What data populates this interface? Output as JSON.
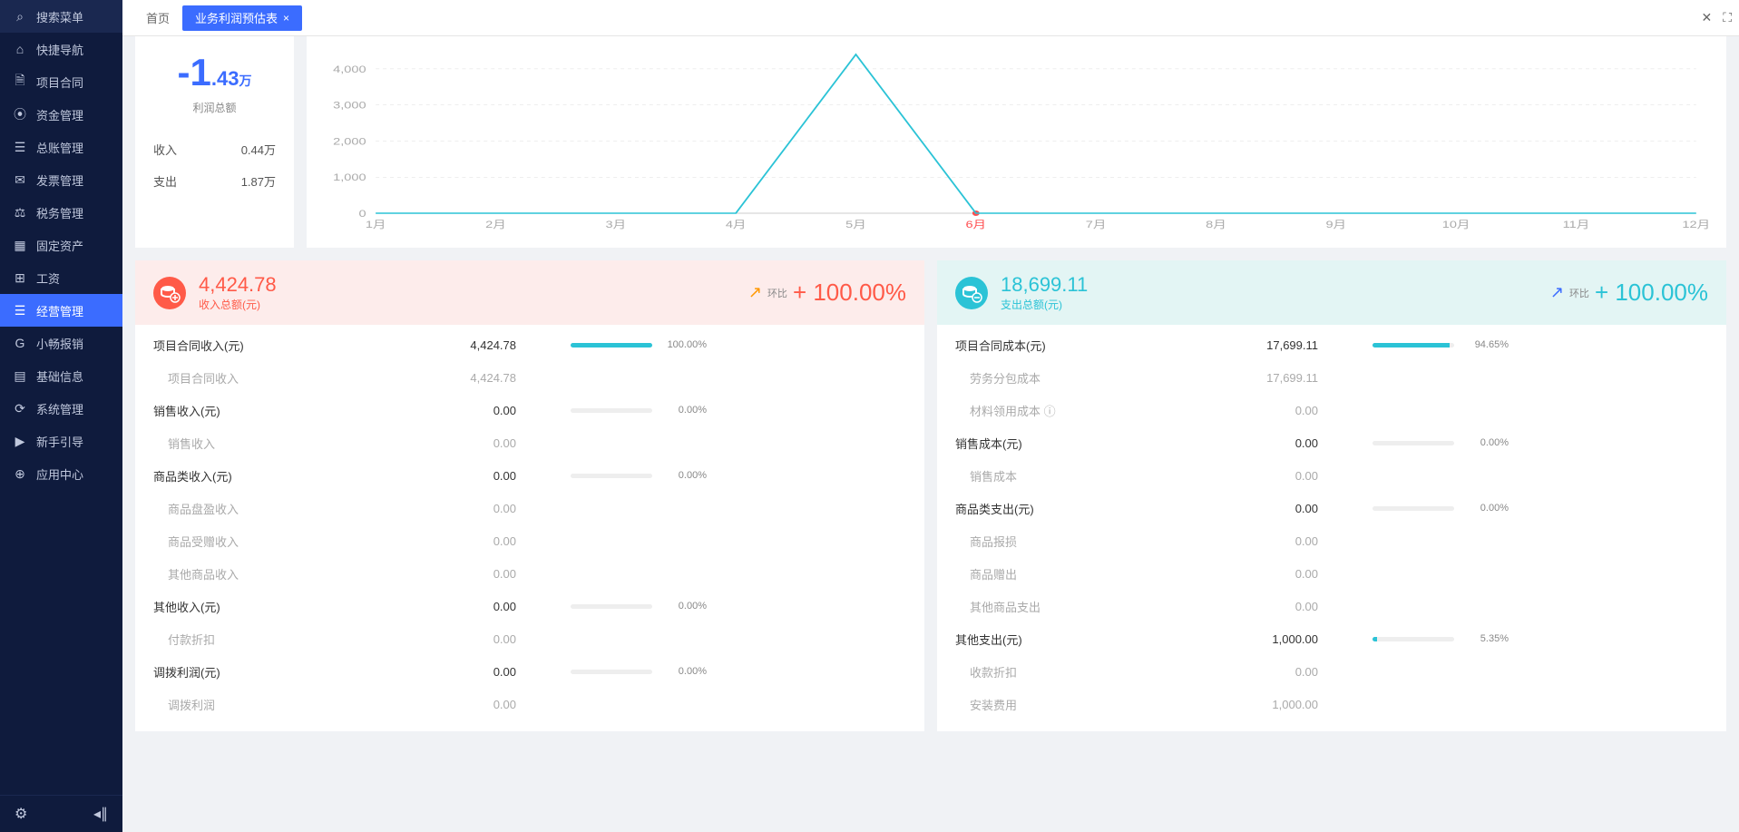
{
  "sidebar": {
    "items": [
      {
        "key": "search",
        "label": "搜索菜单",
        "icon": "⌕"
      },
      {
        "key": "quicknav",
        "label": "快捷导航",
        "icon": "⌂"
      },
      {
        "key": "contract",
        "label": "项目合同",
        "icon": "🗎"
      },
      {
        "key": "funds",
        "label": "资金管理",
        "icon": "⦿"
      },
      {
        "key": "ledger",
        "label": "总账管理",
        "icon": "☰"
      },
      {
        "key": "invoice",
        "label": "发票管理",
        "icon": "✉"
      },
      {
        "key": "tax",
        "label": "税务管理",
        "icon": "⚖"
      },
      {
        "key": "assets",
        "label": "固定资产",
        "icon": "▦"
      },
      {
        "key": "salary",
        "label": "工资",
        "icon": "⊞"
      },
      {
        "key": "biz",
        "label": "经营管理",
        "icon": "☰",
        "active": true
      },
      {
        "key": "xc",
        "label": "小畅报销",
        "icon": "G"
      },
      {
        "key": "basic",
        "label": "基础信息",
        "icon": "▤"
      },
      {
        "key": "sys",
        "label": "系统管理",
        "icon": "⟳"
      },
      {
        "key": "guide",
        "label": "新手引导",
        "icon": "▶"
      },
      {
        "key": "apps",
        "label": "应用中心",
        "icon": "⊕"
      }
    ],
    "footer": {
      "settings_icon": "⚙",
      "collapse_icon": "◂∥"
    }
  },
  "tabs": {
    "items": [
      {
        "label": "首页",
        "active": false,
        "closable": false
      },
      {
        "label": "业务利润预估表",
        "active": true,
        "closable": true
      }
    ],
    "close_icon": "✕",
    "fullscreen_icon": "⛶"
  },
  "summary": {
    "profit_int": "-1",
    "profit_dec": ".43",
    "profit_unit": "万",
    "profit_label": "利润总额",
    "income_label": "收入",
    "income_value": "0.44万",
    "expense_label": "支出",
    "expense_value": "1.87万"
  },
  "chart": {
    "type": "line",
    "x_labels": [
      "1月",
      "2月",
      "3月",
      "4月",
      "5月",
      "6月",
      "7月",
      "8月",
      "9月",
      "10月",
      "11月",
      "12月"
    ],
    "y_ticks": [
      0,
      1000,
      2000,
      3000,
      4000
    ],
    "values": [
      0,
      0,
      0,
      0,
      4400,
      0,
      0,
      0,
      0,
      0,
      0,
      0
    ],
    "ymax": 4400,
    "highlight_index": 5,
    "line_color": "#2bc3d6",
    "grid_color": "#dddddd",
    "axis_color": "#aaaaaa"
  },
  "income_card": {
    "total": "4,424.78",
    "total_label": "收入总额(元)",
    "hb_label": "环比",
    "pct": "+ 100.00%",
    "rows": [
      {
        "label": "项目合同收入(元)",
        "value": "4,424.78",
        "pct": "100.00%",
        "bar": 100,
        "main": true
      },
      {
        "label": "项目合同收入",
        "value": "4,424.78",
        "main": false
      },
      {
        "label": "销售收入(元)",
        "value": "0.00",
        "pct": "0.00%",
        "bar": 0,
        "main": true
      },
      {
        "label": "销售收入",
        "value": "0.00",
        "main": false
      },
      {
        "label": "商品类收入(元)",
        "value": "0.00",
        "pct": "0.00%",
        "bar": 0,
        "main": true
      },
      {
        "label": "商品盘盈收入",
        "value": "0.00",
        "main": false
      },
      {
        "label": "商品受赠收入",
        "value": "0.00",
        "main": false
      },
      {
        "label": "其他商品收入",
        "value": "0.00",
        "main": false
      },
      {
        "label": "其他收入(元)",
        "value": "0.00",
        "pct": "0.00%",
        "bar": 0,
        "main": true
      },
      {
        "label": "付款折扣",
        "value": "0.00",
        "main": false
      },
      {
        "label": "调拨利润(元)",
        "value": "0.00",
        "pct": "0.00%",
        "bar": 0,
        "main": true
      },
      {
        "label": "调拨利润",
        "value": "0.00",
        "main": false
      }
    ]
  },
  "expense_card": {
    "total": "18,699.11",
    "total_label": "支出总额(元)",
    "hb_label": "环比",
    "pct": "+ 100.00%",
    "rows": [
      {
        "label": "项目合同成本(元)",
        "value": "17,699.11",
        "pct": "94.65%",
        "bar": 94.65,
        "main": true
      },
      {
        "label": "劳务分包成本",
        "value": "17,699.11",
        "main": false
      },
      {
        "label": "材料领用成本 ⓘ",
        "value": "0.00",
        "main": false
      },
      {
        "label": "销售成本(元)",
        "value": "0.00",
        "pct": "0.00%",
        "bar": 0,
        "main": true
      },
      {
        "label": "销售成本",
        "value": "0.00",
        "main": false
      },
      {
        "label": "商品类支出(元)",
        "value": "0.00",
        "pct": "0.00%",
        "bar": 0,
        "main": true
      },
      {
        "label": "商品报损",
        "value": "0.00",
        "main": false
      },
      {
        "label": "商品赠出",
        "value": "0.00",
        "main": false
      },
      {
        "label": "其他商品支出",
        "value": "0.00",
        "main": false
      },
      {
        "label": "其他支出(元)",
        "value": "1,000.00",
        "pct": "5.35%",
        "bar": 5.35,
        "main": true
      },
      {
        "label": "收款折扣",
        "value": "0.00",
        "main": false
      },
      {
        "label": "安装费用",
        "value": "1,000.00",
        "main": false
      }
    ]
  }
}
